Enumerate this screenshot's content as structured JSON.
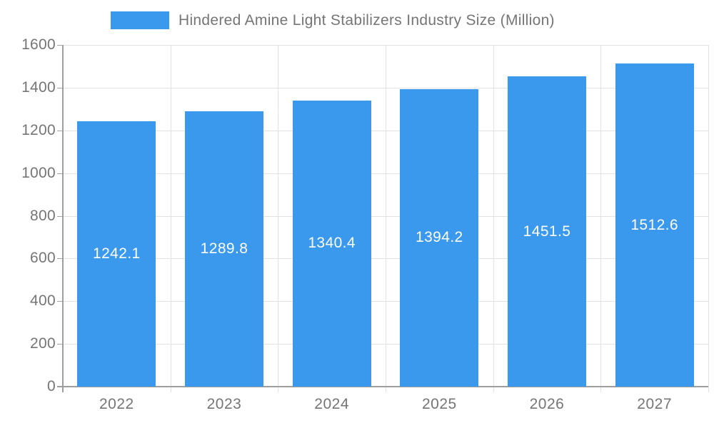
{
  "chart_data": {
    "type": "bar",
    "title": "Hindered Amine Light Stabilizers Industry Size (Million)",
    "series_name": "Hindered Amine Light Stabilizers Industry Size (Million)",
    "categories": [
      "2022",
      "2023",
      "2024",
      "2025",
      "2026",
      "2027"
    ],
    "values": [
      1242.1,
      1289.8,
      1340.4,
      1394.2,
      1451.5,
      1512.6
    ],
    "value_labels": [
      "1242.1",
      "1289.8",
      "1340.4",
      "1394.2",
      "1451.5",
      "1512.6"
    ],
    "xlabel": "",
    "ylabel": "",
    "ylim": [
      0,
      1600
    ],
    "ytick_step": 200,
    "ytick_labels": [
      "0",
      "200",
      "400",
      "600",
      "800",
      "1000",
      "1200",
      "1400",
      "1600"
    ],
    "grid": true,
    "legend_position": "top",
    "value_label_position": "inside-center",
    "colors": {
      "bar": "#3a99ec",
      "axis": "#9e9e9e",
      "gridline": "#e2e2e2",
      "text": "#757575",
      "value_label": "#ffffff",
      "background": "#ffffff"
    }
  }
}
